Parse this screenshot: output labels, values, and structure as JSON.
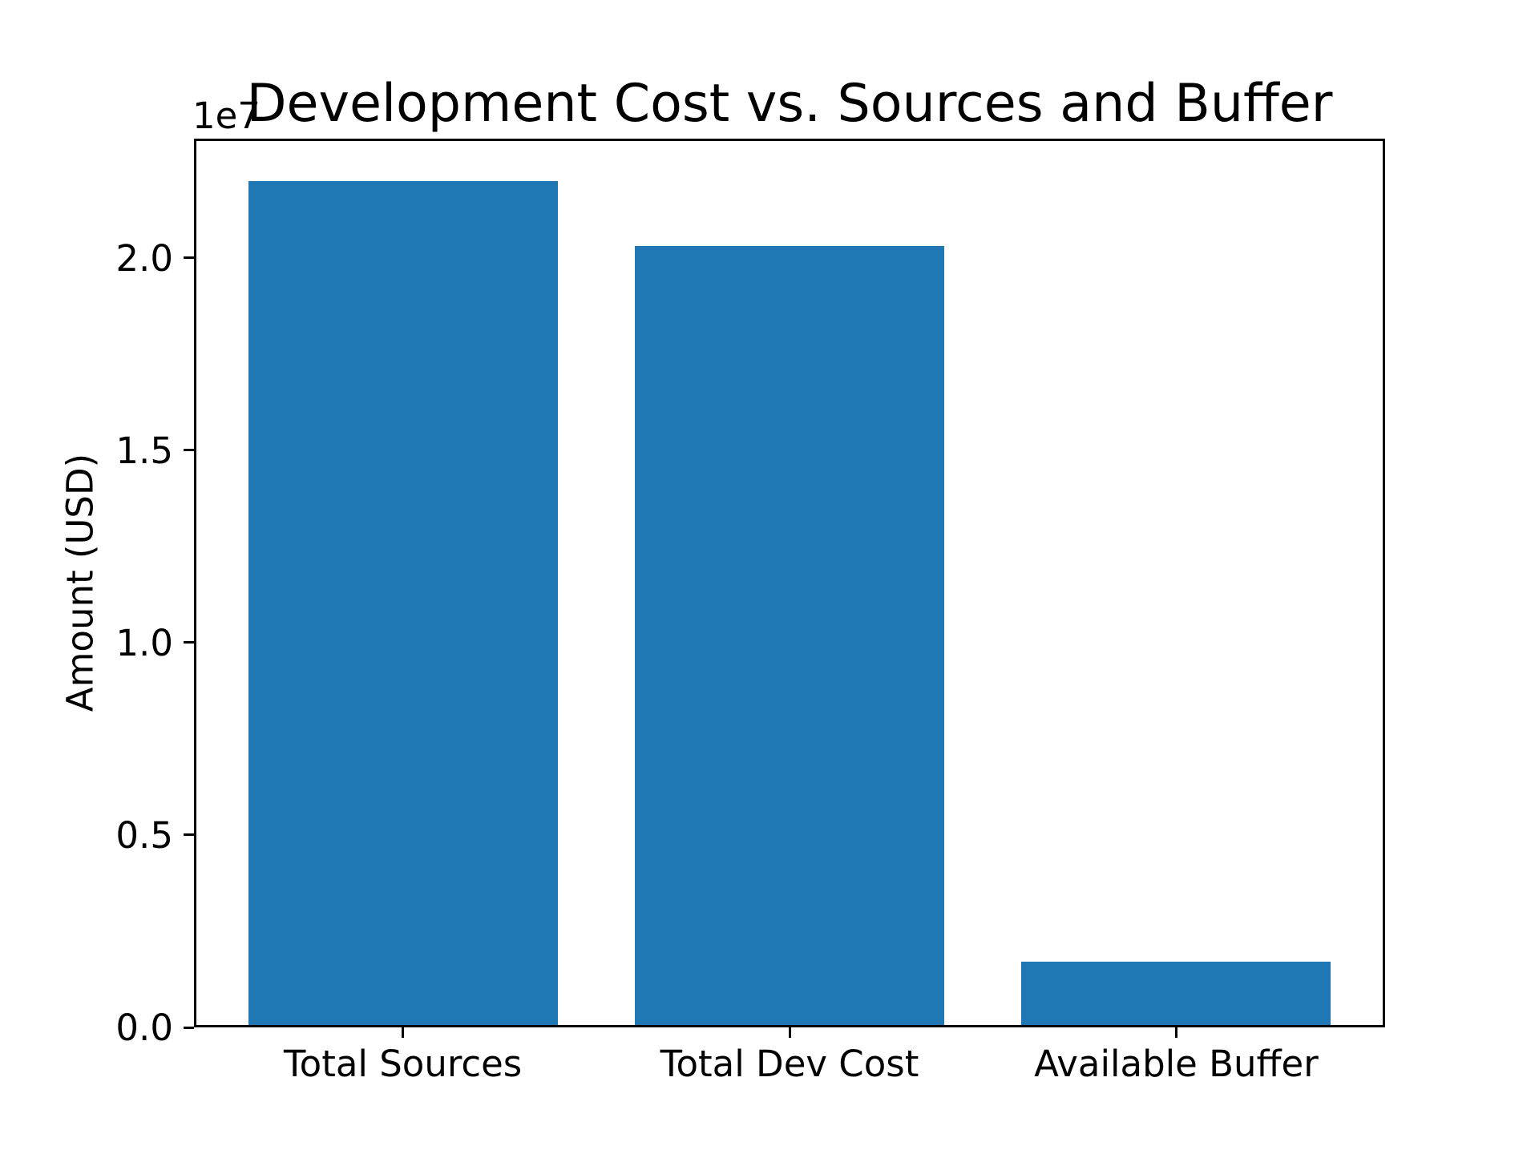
{
  "figure": {
    "title": "Development Cost vs. Sources and Buffer",
    "y_axis_label": "Amount (USD)",
    "y_offset_text": "1e7"
  },
  "chart_data": {
    "type": "bar",
    "title": "Development Cost vs. Sources and Buffer",
    "categories": [
      "Total Sources",
      "Total Dev Cost",
      "Available Buffer"
    ],
    "values": [
      22000000,
      20300000,
      1700000
    ],
    "xlabel": "",
    "ylabel": "Amount (USD)",
    "ylim": [
      0,
      23100000
    ],
    "yticks": [
      0,
      5000000,
      10000000,
      15000000,
      20000000
    ],
    "ytick_labels": [
      "0.0",
      "0.5",
      "1.0",
      "1.5",
      "2.0"
    ],
    "y_offset_text": "1e7",
    "bar_color": "#1f77b4",
    "axis_color": "#000000",
    "background_color": "#ffffff",
    "grid": false,
    "legend_position": "none"
  }
}
